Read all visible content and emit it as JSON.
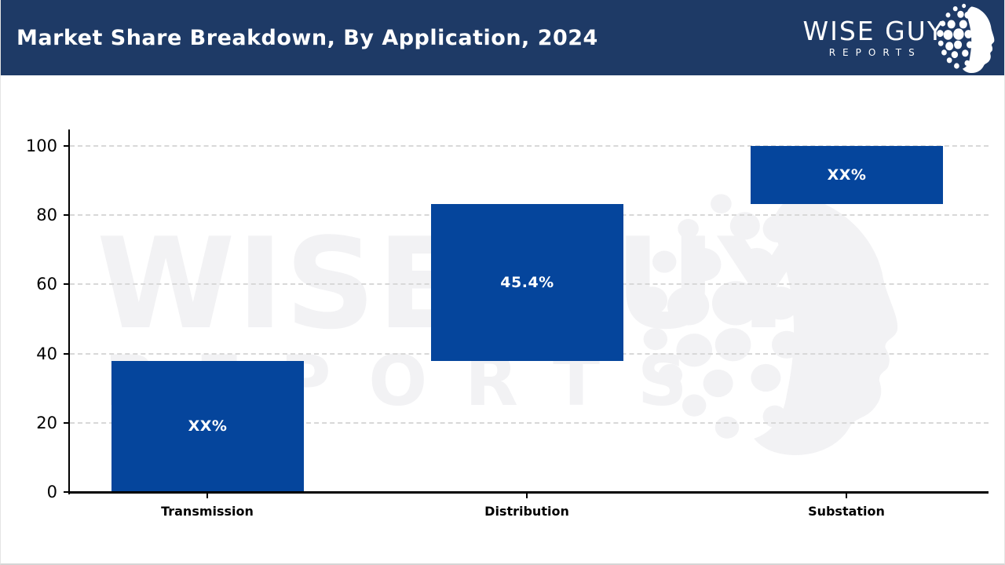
{
  "page": {
    "background": "#ffffff",
    "edge_line_color": "#d5d5d5"
  },
  "header": {
    "background": "#1e3a66",
    "title": "Market Share Breakdown, By Application, 2024",
    "logo": {
      "line1": "WISE GUY",
      "line2": "REPORTS"
    }
  },
  "watermark": {
    "line1": "WISE GUY",
    "line2": "REPORTS"
  },
  "chart_data": {
    "type": "bar",
    "subtype": "floating-waterfall",
    "title": "Market Share Breakdown, By Application, 2024",
    "categories": [
      "Transmission",
      "Distribution",
      "Substation"
    ],
    "segments": [
      {
        "category": "Transmission",
        "start": 0,
        "end": 37.9,
        "label": "XX%"
      },
      {
        "category": "Distribution",
        "start": 37.9,
        "end": 83.3,
        "label": "45.4%"
      },
      {
        "category": "Substation",
        "start": 83.3,
        "end": 100,
        "label": "XX%"
      }
    ],
    "ylim": [
      0,
      100
    ],
    "yticks": [
      0,
      20,
      40,
      60,
      80,
      100
    ],
    "grid": "horizontal-dashed",
    "legend": "none",
    "bar_color": "#05459c",
    "bar_label_color": "#ffffff",
    "axis_color": "#000000",
    "grid_color": "#d8d8d8"
  }
}
